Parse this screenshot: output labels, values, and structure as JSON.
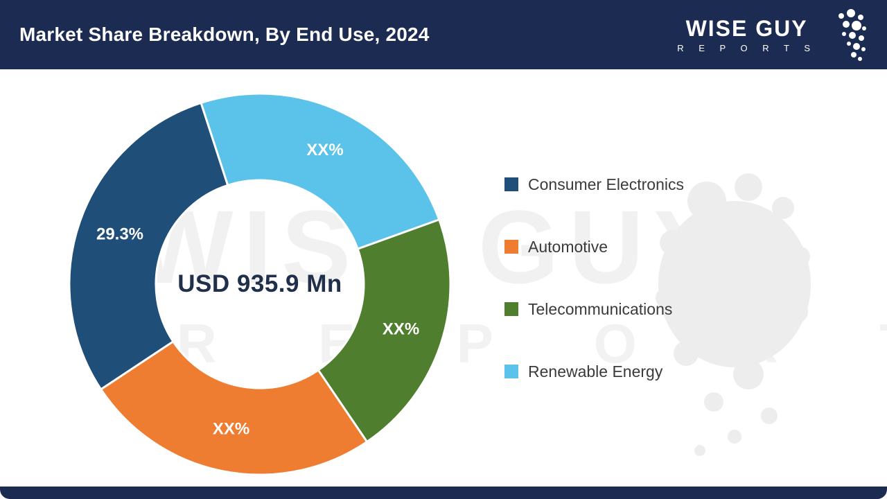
{
  "header": {
    "title": "Market Share Breakdown, By End Use, 2024",
    "logo": {
      "line1": "WISE GUY",
      "line2": "R E P O R T S"
    }
  },
  "watermark": {
    "line1": "WISE GUY",
    "line2": "R E P O R T S"
  },
  "chart_data": {
    "type": "pie",
    "subtype": "donut",
    "title": "Market Share Breakdown, By End Use, 2024",
    "center_label": "USD 935.9 Mn",
    "start_angle_deg": 108,
    "direction": "clockwise",
    "units": "percent market share",
    "segments": [
      {
        "name": "Renewable Energy",
        "value": 24.5,
        "label": "XX%",
        "color": "#5BC2EA"
      },
      {
        "name": "Telecommunications",
        "value": 21.0,
        "label": "XX%",
        "color": "#4E7E2E"
      },
      {
        "name": "Automotive",
        "value": 25.2,
        "label": "XX%",
        "color": "#EE7D31"
      },
      {
        "name": "Consumer Electronics",
        "value": 29.3,
        "label": "29.3%",
        "color": "#1F4E79"
      }
    ],
    "legend": [
      {
        "name": "Consumer Electronics",
        "color": "#1F4E79"
      },
      {
        "name": "Automotive",
        "color": "#EE7D31"
      },
      {
        "name": "Telecommunications",
        "color": "#4E7E2E"
      },
      {
        "name": "Renewable Energy",
        "color": "#5BC2EA"
      }
    ],
    "legend_position": "right"
  }
}
